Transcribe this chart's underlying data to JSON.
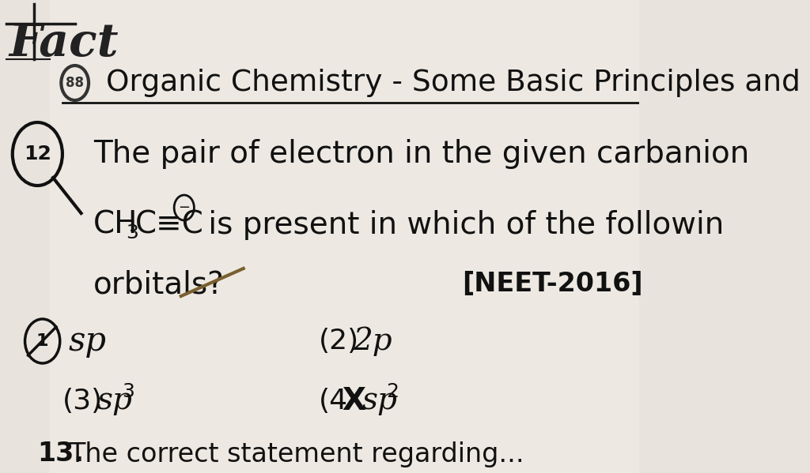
{
  "bg_color": "#e8e4dd",
  "header_text": "Organic Chemistry - Some Basic Principles and",
  "header_fontsize": 26,
  "header_color": "#111111",
  "question_num": "12",
  "question_line1": "The pair of electron in the given carbanion",
  "question_line3": "orbitals?",
  "neet_ref": "[NEET-2016]",
  "text_color": "#111111",
  "footer_text": "13.  The correct statement regarding..."
}
